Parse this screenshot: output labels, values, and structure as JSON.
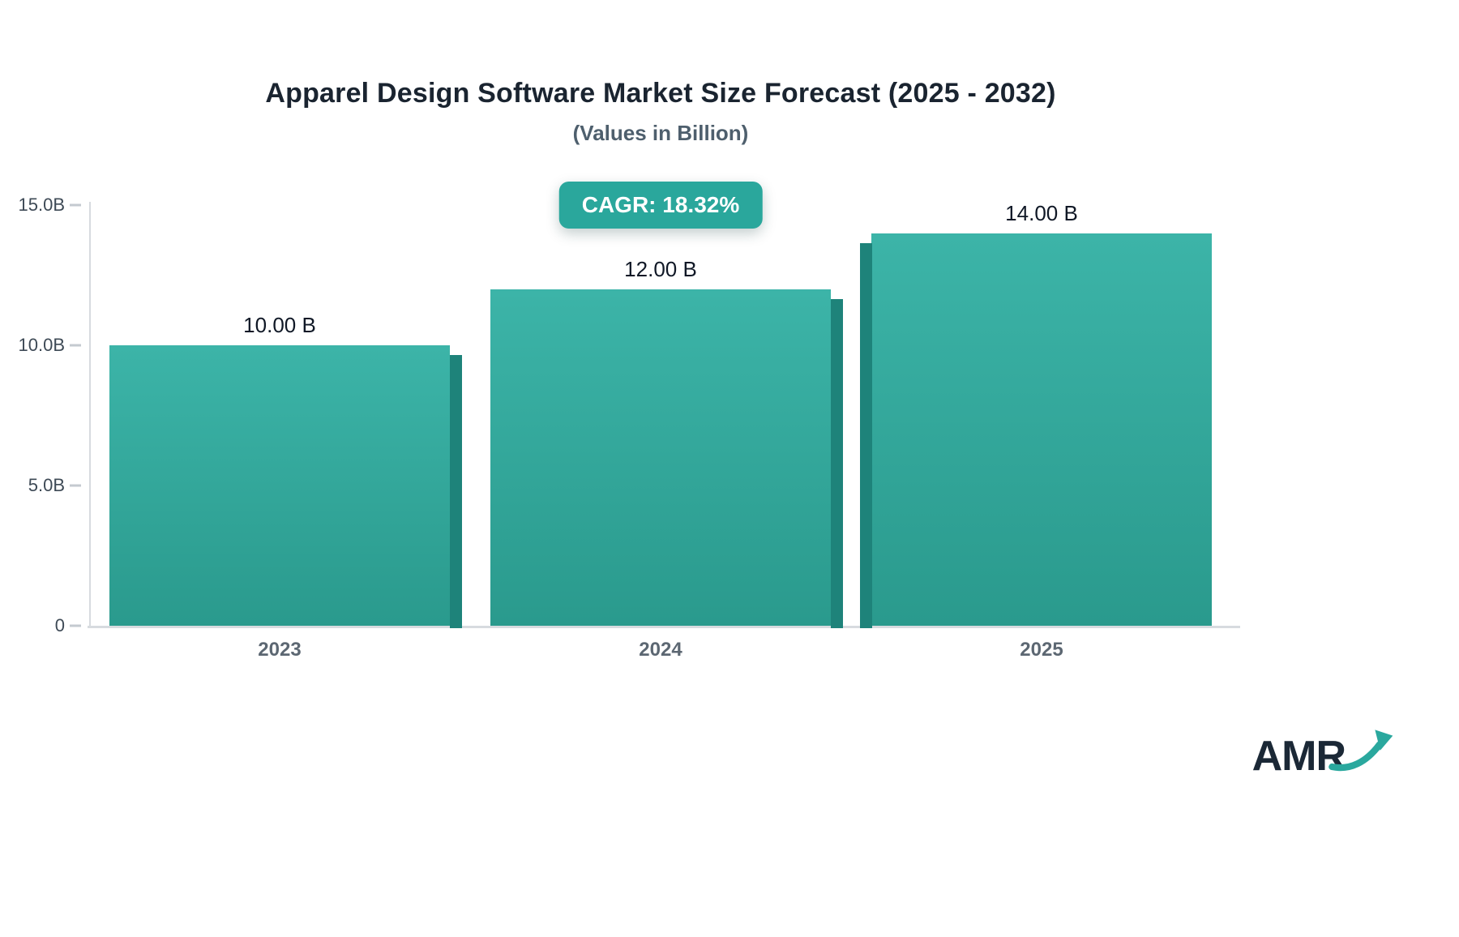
{
  "title": "Apparel Design Software Market Size Forecast (2025 - 2032)",
  "subtitle": "(Values in Billion)",
  "badge": {
    "label": "CAGR: 18.32%"
  },
  "chart_data": {
    "type": "bar",
    "title": "Apparel Design Software Market Size Forecast (2025 - 2032)",
    "subtitle": "(Values in Billion)",
    "categories": [
      "2023",
      "2024",
      "2025"
    ],
    "values": [
      10.0,
      12.0,
      14.0
    ],
    "value_labels": [
      "10.00 B",
      "12.00 B",
      "14.00 B"
    ],
    "xlabel": "",
    "ylabel": "",
    "ylim": [
      0,
      15
    ],
    "yticks": [
      {
        "value": 0,
        "label": "0"
      },
      {
        "value": 5,
        "label": "5.0B"
      },
      {
        "value": 10,
        "label": "10.0B"
      },
      {
        "value": 15,
        "label": "15.0B"
      }
    ],
    "legend": "none",
    "grid": false,
    "annotations": [
      "CAGR: 18.32%"
    ]
  },
  "colors": {
    "bar_top": "#3cb4a8",
    "bar_bottom": "#2a9a8d",
    "bar_edge": "#1e837a",
    "badge_bg": "#2aa79c",
    "title_color": "#1a2430",
    "subtitle_color": "#4e5f6d",
    "axis_line": "#d7dbdf",
    "tick_label": "#3e4a56",
    "x_label": "#5c6772",
    "logo_color": "#1b2836",
    "logo_arrow": "#2aa89e"
  },
  "logo": {
    "text": "AMR"
  }
}
